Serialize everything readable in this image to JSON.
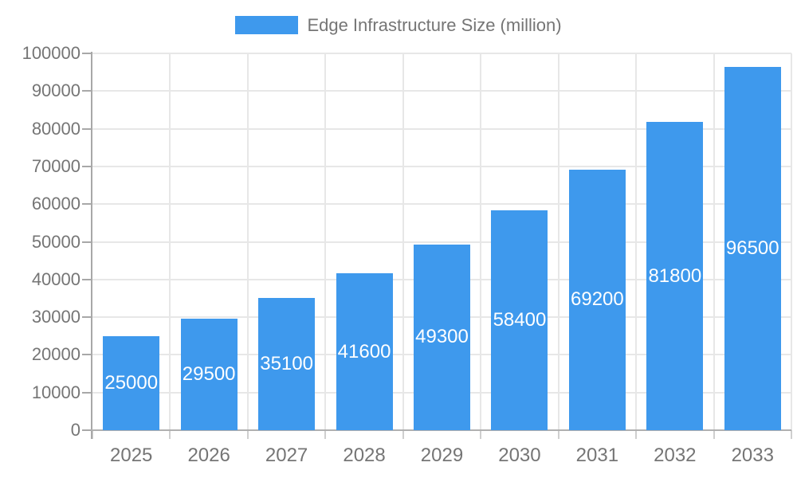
{
  "chart_data": {
    "type": "bar",
    "title": "Edge Infrastructure Size (million)",
    "categories": [
      "2025",
      "2026",
      "2027",
      "2028",
      "2029",
      "2030",
      "2031",
      "2032",
      "2033"
    ],
    "series": [
      {
        "name": "Edge Infrastructure Size (million)",
        "values": [
          25000,
          29500,
          35100,
          41600,
          49300,
          58400,
          69200,
          81800,
          96500
        ]
      }
    ],
    "xlabel": "",
    "ylabel": "",
    "ylim": [
      0,
      100000
    ],
    "ytick_step": 10000,
    "ytick_labels": [
      "0",
      "10000",
      "20000",
      "30000",
      "40000",
      "50000",
      "60000",
      "70000",
      "80000",
      "90000",
      "100000"
    ],
    "grid": true,
    "legend_position": "top-center",
    "bar_value_labels": "inside-center",
    "colors": {
      "bar": "#3E99ED",
      "bar_label_text": "#ffffff",
      "grid_line": "#e7e7e7",
      "axis_line": "#a8a8a8",
      "baseline": "#b0b0b0",
      "x_tick_mark": "#cfcfcf",
      "tick_text": "#757575",
      "legend_text": "#757575",
      "background": "#ffffff"
    }
  }
}
